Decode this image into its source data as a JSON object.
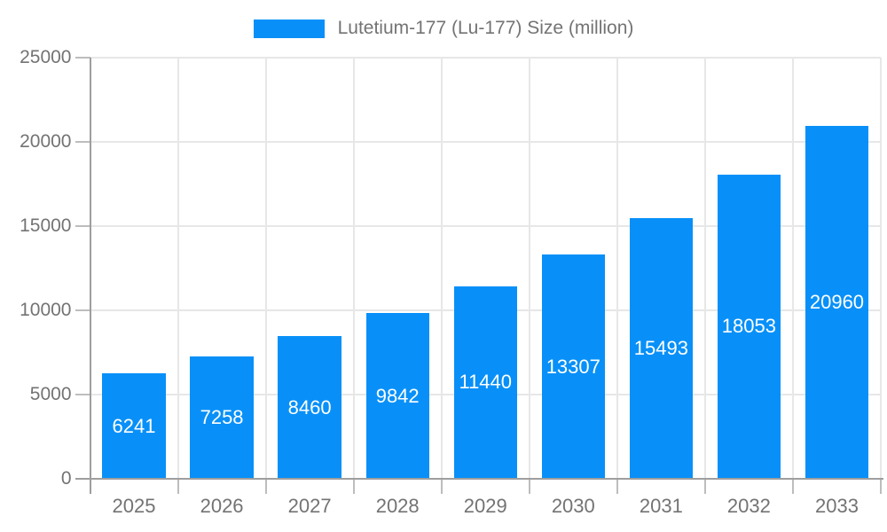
{
  "chart_data": {
    "type": "bar",
    "title": "",
    "legend": "Lutetium-177 (Lu-177) Size (million)",
    "legend_position": "top",
    "categories": [
      "2025",
      "2026",
      "2027",
      "2028",
      "2029",
      "2030",
      "2031",
      "2032",
      "2033"
    ],
    "values": [
      6241,
      7258,
      8460,
      9842,
      11440,
      13307,
      15493,
      18053,
      20960
    ],
    "xlabel": "",
    "ylabel": "",
    "ylim": [
      0,
      25000
    ],
    "yticks": [
      0,
      5000,
      10000,
      15000,
      20000,
      25000
    ],
    "grid": true,
    "bar_labels_inside": true,
    "colors": {
      "bar": "#0890f8",
      "grid": "#e7e7e7",
      "axis": "#9e9e9e",
      "tick": "#bdbdbd",
      "tick_label": "#737373",
      "bar_label": "#ffffff",
      "background": "#ffffff"
    }
  }
}
